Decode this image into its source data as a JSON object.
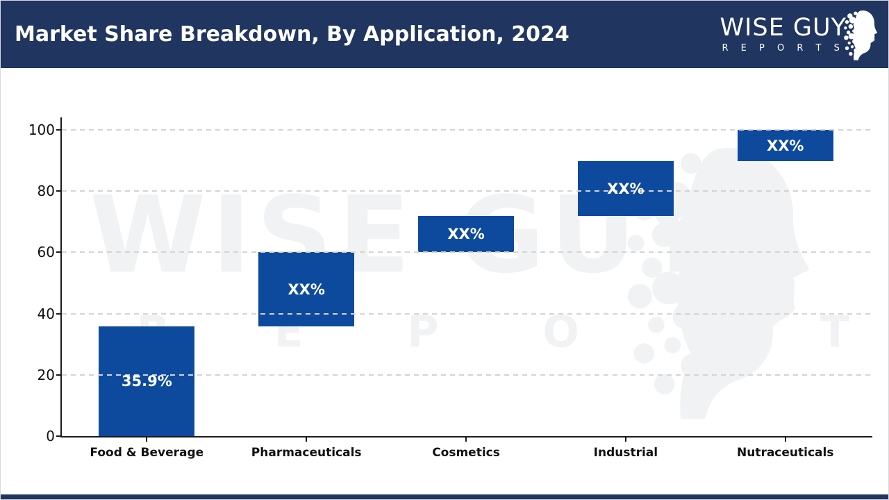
{
  "header": {
    "title": "Market Share Breakdown, By Application, 2024",
    "logo": {
      "line1": "WISE GUY",
      "line2": "R E P O R T S"
    }
  },
  "watermark": {
    "line1": "WISE GUY",
    "line2": "R E P O R T S"
  },
  "colors": {
    "header_bg": "#20355f",
    "footer_bg": "#20355f",
    "bar": "#0d4a9e",
    "grid": "#d4d4d4",
    "axis": "#1a1a1a",
    "watermark": "#f1f2f4",
    "bar_label_text": "#ffffff",
    "title_text": "#ffffff"
  },
  "chart_data": {
    "type": "bar",
    "subtype": "waterfall",
    "title": "Market Share Breakdown, By Application, 2024",
    "categories": [
      "Food & Beverage",
      "Pharmaceuticals",
      "Cosmetics",
      "Industrial",
      "Nutraceuticals"
    ],
    "bars": [
      {
        "category": "Food & Beverage",
        "start": 0,
        "end": 35.9,
        "label": "35.9%"
      },
      {
        "category": "Pharmaceuticals",
        "start": 35.9,
        "end": 60.0,
        "label": "XX%"
      },
      {
        "category": "Cosmetics",
        "start": 60.0,
        "end": 71.8,
        "label": "XX%"
      },
      {
        "category": "Industrial",
        "start": 71.8,
        "end": 89.7,
        "label": "XX%"
      },
      {
        "category": "Nutraceuticals",
        "start": 89.7,
        "end": 100.0,
        "label": "XX%"
      }
    ],
    "xlabel": "",
    "ylabel": "",
    "ylim": [
      0,
      100
    ],
    "yticks": [
      0,
      20,
      40,
      60,
      80,
      100
    ],
    "grid": "horizontal-dashed",
    "legend": "none",
    "bar_color": "#0d4a9e"
  }
}
